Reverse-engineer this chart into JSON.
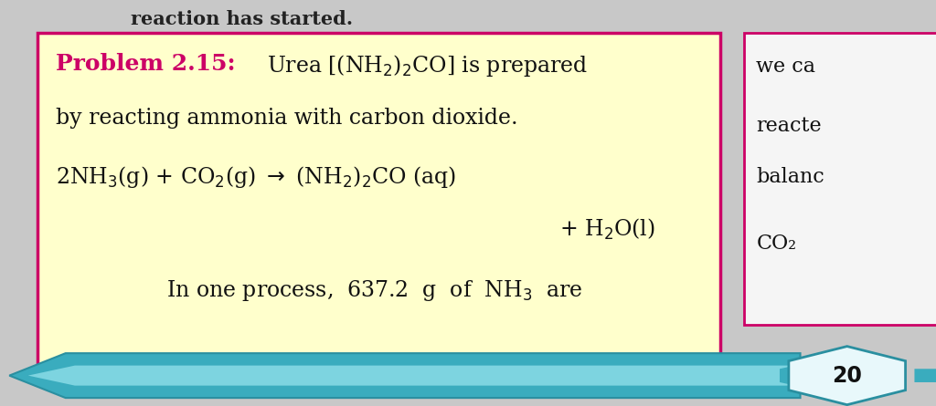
{
  "bg_color": "#c8c8c8",
  "box_bg_color": "#ffffcc",
  "box_border_color": "#cc0066",
  "top_text": "reaction has started.",
  "problem_label": "Problem 2.15:",
  "problem_label_color": "#cc0066",
  "problem_label_fontsize": 18,
  "body_text_color": "#111111",
  "body_fontsize": 17,
  "right_col_text": [
    "we ca",
    "reacte",
    "balanc",
    "CO₂"
  ],
  "right_col_color": "#111111",
  "right_box_bg": "#f5f5f5",
  "right_box_border": "#cc0066",
  "teal_color": "#3aacbe",
  "teal_dark": "#2a8fa0",
  "page_num": "20",
  "page_num_color": "#111111",
  "line1": "Urea [(NH$_2$)$_2$CO] is prepared",
  "line2": "by reacting ammonia with carbon dioxide.",
  "line3": "2NH$_3$(g) + CO$_2$(g) $\\rightarrow$ (NH$_2$)$_2$CO (aq)",
  "line4": "+ H$_2$O(l)",
  "line5": "In one process,  637.2  g  of  NH$_3$  are"
}
